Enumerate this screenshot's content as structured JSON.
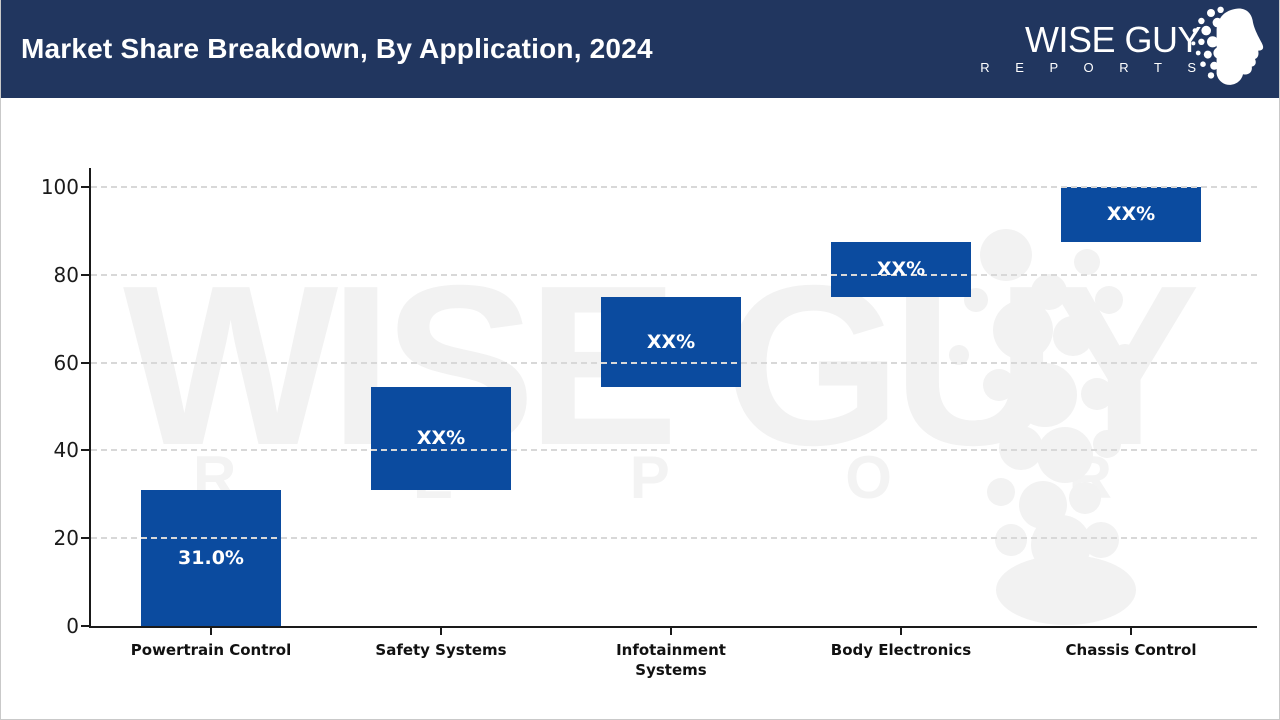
{
  "header": {
    "title": "Market Share Breakdown, By Application, 2024",
    "background_color": "#21365f",
    "logo": {
      "line1": "WISE GUY",
      "line2": "R E P O R T S"
    }
  },
  "watermark": {
    "line1": "WISE GUY",
    "line2": "R E P O R T S"
  },
  "chart_data": {
    "type": "bar",
    "subtype": "floating-waterfall",
    "title": "Market Share Breakdown, By Application, 2024",
    "categories": [
      "Powertrain Control",
      "Safety Systems",
      "Infotainment\nSystems",
      "Body Electronics",
      "Chassis Control"
    ],
    "bars": [
      {
        "category": "Powertrain Control",
        "start": 0,
        "end": 31,
        "label": "31.0%"
      },
      {
        "category": "Safety Systems",
        "start": 31,
        "end": 54.5,
        "label": "XX%"
      },
      {
        "category": "Infotainment\nSystems",
        "start": 54.5,
        "end": 75,
        "label": "XX%"
      },
      {
        "category": "Body Electronics",
        "start": 75,
        "end": 87.5,
        "label": "XX%"
      },
      {
        "category": "Chassis Control",
        "start": 87.5,
        "end": 100,
        "label": "XX%"
      }
    ],
    "yticks": [
      "0",
      "20",
      "40",
      "60",
      "80",
      "100"
    ],
    "ylim": [
      0,
      104
    ],
    "xlabel": "",
    "ylabel": "",
    "grid": "horizontal-dashed-over-bars",
    "bar_color": "#0b4b9f",
    "bar_label_color": "#ffffff",
    "axis_color": "#1a1a1a",
    "gridline_color": "#d8d8d8",
    "watermark_color": "#f2f2f2"
  }
}
